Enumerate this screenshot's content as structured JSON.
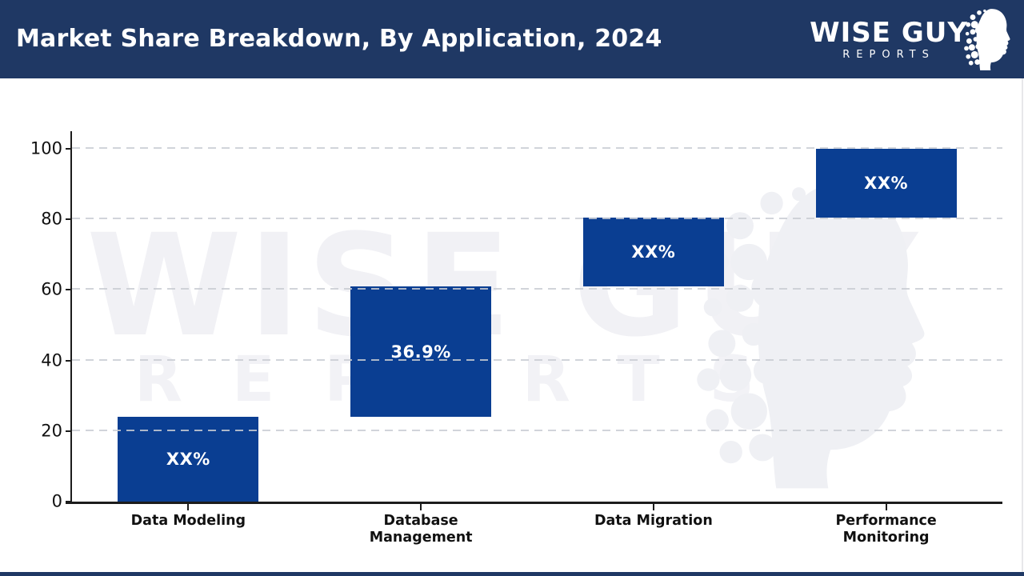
{
  "header": {
    "title": "Market Share Breakdown, By Application, 2024",
    "logo": {
      "name": "WISE GUY",
      "sub": "REPORTS"
    }
  },
  "watermark": {
    "name": "WISE GUY",
    "sub": "REPORTS"
  },
  "chart_data": {
    "type": "bar",
    "subtype": "floating-waterfall",
    "title": "Market Share Breakdown, By Application, 2024",
    "categories": [
      "Data Modeling",
      "Database\nManagement",
      "Data Migration",
      "Performance\nMonitoring"
    ],
    "segments": [
      {
        "category": "Data Modeling",
        "start": 0,
        "end": 24,
        "label": "XX%"
      },
      {
        "category": "Database Management",
        "start": 24,
        "end": 61,
        "label": "36.9%"
      },
      {
        "category": "Data Migration",
        "start": 61,
        "end": 80.5,
        "label": "XX%"
      },
      {
        "category": "Performance Monitoring",
        "start": 80.5,
        "end": 100,
        "label": "XX%"
      }
    ],
    "yticks": [
      0,
      20,
      40,
      60,
      80,
      100
    ],
    "ylim": [
      0,
      105
    ],
    "xlabel": "",
    "ylabel": "",
    "grid": "horizontal-dashed",
    "legend_position": "none",
    "bar_color": "#0a3e92",
    "bar_label_color": "#ffffff",
    "axis_color": "#1c1c1c"
  },
  "colors": {
    "header_bg": "#1f3864",
    "footer_bg": "#1f3864",
    "watermark": "#f1f1f5",
    "grid": "#c9ccd3"
  }
}
